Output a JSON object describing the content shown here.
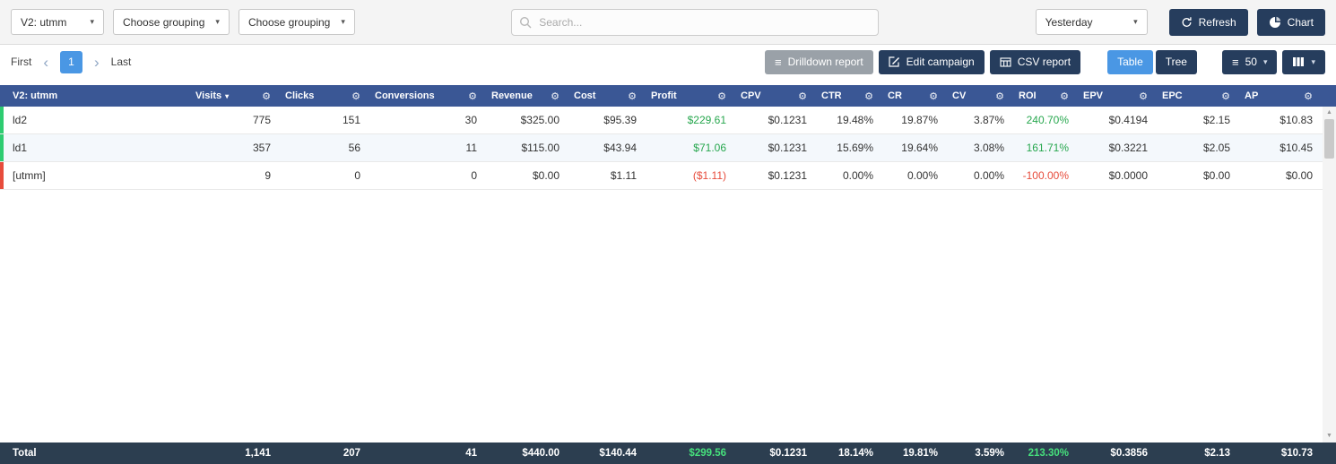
{
  "toolbar": {
    "campaign_dropdown": "V2: utmm",
    "grouping_dropdown_1": "Choose grouping",
    "grouping_dropdown_2": "Choose grouping",
    "search_placeholder": "Search...",
    "date_dropdown": "Yesterday",
    "refresh_button": "Refresh",
    "chart_button": "Chart"
  },
  "pagination": {
    "first": "First",
    "current_page": "1",
    "last": "Last"
  },
  "actions": {
    "drilldown_button": "Drilldown report",
    "edit_campaign_button": "Edit campaign",
    "csv_button": "CSV report",
    "table_button": "Table",
    "tree_button": "Tree",
    "page_size": "50"
  },
  "icons": {
    "caret_down": "▾",
    "chevron_left": "‹",
    "chevron_right": "›",
    "gear": "⚙",
    "sort_desc": "▾",
    "hamburger": "≡",
    "arrow_up": "▲",
    "arrow_down": "▼"
  },
  "grid": {
    "name_column_header": "V2: utmm",
    "sorted_column": "Visits",
    "metric_columns": [
      "Visits",
      "Clicks",
      "Conversions",
      "Revenue",
      "Cost",
      "Profit",
      "CPV",
      "CTR",
      "CR",
      "CV",
      "ROI",
      "EPV",
      "EPC",
      "AP"
    ],
    "rows": [
      {
        "status": "green",
        "trend": "positive",
        "name": "ld2",
        "values": [
          "775",
          "151",
          "30",
          "$325.00",
          "$95.39",
          "$229.61",
          "$0.1231",
          "19.48%",
          "19.87%",
          "3.87%",
          "240.70%",
          "$0.4194",
          "$2.15",
          "$10.83"
        ]
      },
      {
        "status": "green",
        "trend": "positive",
        "name": "ld1",
        "values": [
          "357",
          "56",
          "11",
          "$115.00",
          "$43.94",
          "$71.06",
          "$0.1231",
          "15.69%",
          "19.64%",
          "3.08%",
          "161.71%",
          "$0.3221",
          "$2.05",
          "$10.45"
        ]
      },
      {
        "status": "red",
        "trend": "negative",
        "name": "[utmm]",
        "values": [
          "9",
          "0",
          "0",
          "$0.00",
          "$1.11",
          "($1.11)",
          "$0.1231",
          "0.00%",
          "0.00%",
          "0.00%",
          "-100.00%",
          "$0.0000",
          "$0.00",
          "$0.00"
        ]
      }
    ],
    "total": {
      "label": "Total",
      "trend": "positive",
      "values": [
        "1,141",
        "207",
        "41",
        "$440.00",
        "$140.44",
        "$299.56",
        "$0.1231",
        "18.14%",
        "19.81%",
        "3.59%",
        "213.30%",
        "$0.3856",
        "$2.13",
        "$10.73"
      ]
    }
  },
  "colors": {
    "header_blue": "#3a5795",
    "total_navy": "#2c3e50",
    "accent_blue": "#4a97e4",
    "navy_button": "#263d5d",
    "positive_green": "#27a74e",
    "negative_red": "#e74c3c"
  }
}
